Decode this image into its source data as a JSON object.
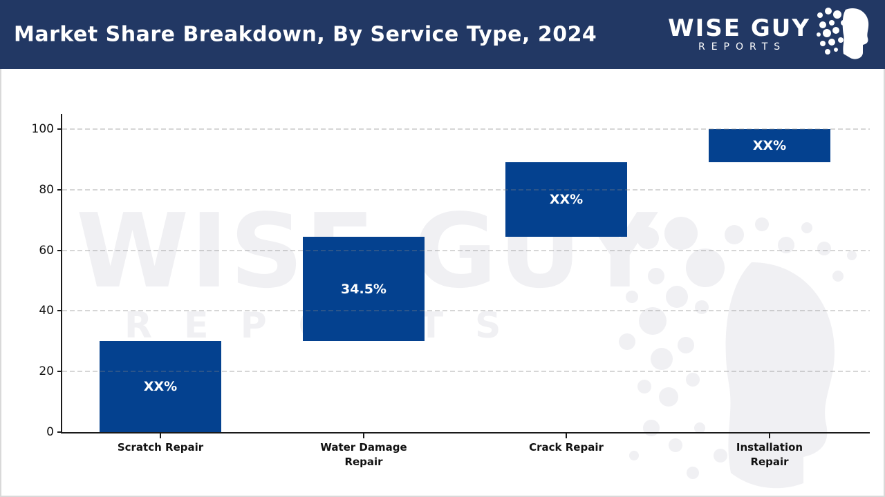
{
  "header": {
    "title": "Market Share Breakdown, By Service Type, 2024",
    "logo": {
      "line1": "WISE GUY",
      "line2": "REPORTS"
    }
  },
  "watermark": {
    "line1": "WISE GUY",
    "line2": "REPORTS"
  },
  "colors": {
    "header_bg": "#223864",
    "bar": "#04418F",
    "title_text": "#FFFFFF",
    "watermark": "#F0F0F3",
    "gridline": "#BFBFBF"
  },
  "chart_data": {
    "type": "bar",
    "variant": "floating-waterfall",
    "title": "Market Share Breakdown, By Service Type, 2024",
    "xlabel": "",
    "ylabel": "",
    "categories": [
      "Scratch Repair",
      "Water Damage Repair",
      "Crack Repair",
      "Installation Repair"
    ],
    "category_label_lines": [
      [
        "Scratch Repair"
      ],
      [
        "Water Damage",
        "Repair"
      ],
      [
        "Crack Repair"
      ],
      [
        "Installation",
        "Repair"
      ]
    ],
    "segments": [
      {
        "category": "Scratch Repair",
        "start": 0,
        "end": 30,
        "value": 30,
        "label": "XX%"
      },
      {
        "category": "Water Damage Repair",
        "start": 30,
        "end": 64.5,
        "value": 34.5,
        "label": "34.5%"
      },
      {
        "category": "Crack Repair",
        "start": 64.5,
        "end": 89,
        "value": 24.5,
        "label": "XX%"
      },
      {
        "category": "Installation Repair",
        "start": 89,
        "end": 100,
        "value": 11,
        "label": "XX%"
      }
    ],
    "yticks": [
      0,
      20,
      40,
      60,
      80,
      100
    ],
    "ylim": [
      0,
      105
    ],
    "grid": {
      "axis": "y",
      "style": "dashed",
      "drawn_over_bars": true
    },
    "legend": null,
    "bar_color": "#04418F"
  }
}
